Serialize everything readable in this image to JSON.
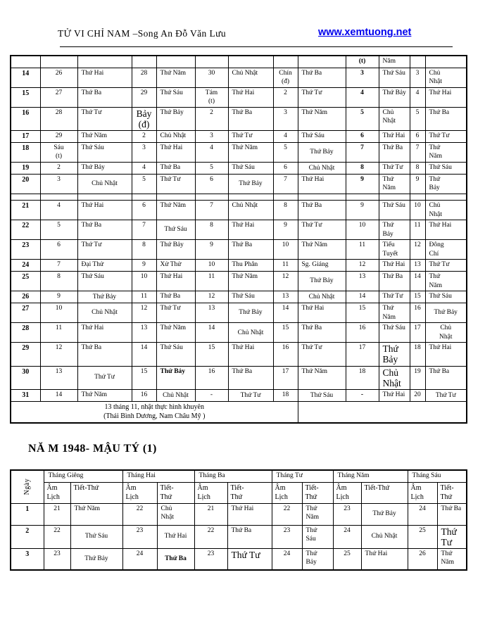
{
  "header": {
    "title": "TỬ VI CHỈ NAM –Song An Đỗ Văn Lưu",
    "link": "www.xemtuong.net",
    "link_color": "#0000ee"
  },
  "main_table": {
    "header_row": [
      "",
      "",
      "",
      "",
      "",
      "",
      "",
      "",
      "",
      {
        "t": "(t)",
        "b": true
      },
      "Năm",
      "",
      ""
    ],
    "rows": [
      {
        "cells": [
          {
            "t": "14",
            "b": true
          },
          "26",
          "Thứ Hai",
          "28",
          "Thứ Năm",
          "30",
          "Chủ Nhật",
          "Chín\n(đ)",
          "Thứ Ba",
          {
            "t": "3",
            "b": true
          },
          "Thứ Sáu",
          "3",
          "Chủ\nNhật"
        ]
      },
      {
        "cells": [
          {
            "t": "15",
            "b": true
          },
          "27",
          "Thứ Ba",
          "29",
          "Thứ Sáu",
          "Tám\n(t)",
          "Thứ Hai",
          "2",
          "Thứ Tư",
          {
            "t": "4",
            "b": true
          },
          "Thứ Bảy",
          "4",
          "Thứ Hai"
        ]
      },
      {
        "cells": [
          {
            "t": "16",
            "b": true
          },
          "28",
          "Thứ Tư",
          {
            "t": "Bảy\n(đ)",
            "lg": true
          },
          "Thứ Bảy",
          "2",
          "Thứ Ba",
          "3",
          "Thứ Năm",
          {
            "t": "5",
            "b": true
          },
          "Chủ\nNhật",
          "5",
          "Thứ Ba"
        ]
      },
      {
        "cells": [
          {
            "t": "17",
            "b": true
          },
          "29",
          "Thứ Năm",
          "2",
          "Chủ Nhật",
          "3",
          "Thứ Tư",
          "4",
          "Thứ Sáu",
          {
            "t": "6",
            "b": true
          },
          "Thứ Hai",
          "6",
          "Thứ Tư"
        ]
      },
      {
        "cells": [
          {
            "t": "18",
            "b": true
          },
          "Sáu\n(t)",
          "Thứ Sáu",
          "3",
          "Thứ Hai",
          "4",
          "Thứ Năm",
          "5",
          {
            "t": "Thứ Bảy",
            "c": true
          },
          {
            "t": "7",
            "b": true
          },
          "Thứ Ba",
          "7",
          "Thứ\nNăm"
        ]
      },
      {
        "cells": [
          {
            "t": "19",
            "b": true
          },
          "2",
          "Thứ Bảy",
          "4",
          "Thứ Ba",
          "5",
          "Thứ Sáu",
          "6",
          {
            "t": "Chủ Nhật",
            "c": true
          },
          {
            "t": "8",
            "b": true
          },
          "Thứ Tư",
          "8",
          "Thứ Sáu"
        ]
      },
      {
        "cells": [
          {
            "t": "20",
            "b": true
          },
          "3",
          {
            "t": "Chủ Nhật",
            "c": true
          },
          "5",
          "Thứ Tư",
          "6",
          {
            "t": "Thứ Bảy",
            "c": true
          },
          "7",
          "Thứ Hai",
          {
            "t": "9",
            "b": true
          },
          "Thứ\nNăm",
          "9",
          "Thứ\nBảy"
        ]
      },
      {
        "spacer": true
      },
      {
        "cells": [
          {
            "t": "21",
            "b": true
          },
          "4",
          "Thứ Hai",
          "6",
          "Thứ Năm",
          "7",
          "Chủ Nhật",
          "8",
          "Thứ Ba",
          "9",
          "Thứ Sáu",
          "10",
          "Chủ\nNhật"
        ]
      },
      {
        "cells": [
          {
            "t": "22",
            "b": true
          },
          "5",
          "Thứ Ba",
          "7",
          {
            "t": "Thứ Sáu",
            "c": true
          },
          "8",
          "Thứ Hai",
          "9",
          "Thứ Tư",
          "10",
          "Thứ\nBảy",
          "11",
          "Thứ Hai"
        ]
      },
      {
        "cells": [
          {
            "t": "23",
            "b": true
          },
          "6",
          "Thứ Tư",
          "8",
          "Thứ Bảy",
          "9",
          "Thứ Ba",
          "10",
          "Thứ Năm",
          "11",
          "Tiểu\nTuyết",
          "12",
          "Đông\nChí"
        ]
      },
      {
        "cells": [
          {
            "t": "24",
            "b": true
          },
          "7",
          "Đại Thử",
          "9",
          "Xử Thử",
          "10",
          "Thu Phân",
          "11",
          "Sg. Giáng",
          "12",
          "Thứ Hai",
          "13",
          "Thứ Tư"
        ]
      },
      {
        "cells": [
          {
            "t": "25",
            "b": true
          },
          "8",
          "Thứ Sáu",
          "10",
          "Thứ Hai",
          "11",
          "Thứ Năm",
          "12",
          {
            "t": "Thứ Bảy",
            "c": true
          },
          "13",
          "Thứ Ba",
          "14",
          "Thứ\nNăm"
        ]
      },
      {
        "cells": [
          {
            "t": "26",
            "b": true
          },
          "9",
          {
            "t": "Thứ Bảy",
            "c": true
          },
          "11",
          "Thứ Ba",
          "12",
          "Thứ Sáu",
          "13",
          {
            "t": "Chủ Nhật",
            "c": true
          },
          "14",
          "Thứ Tư",
          "15",
          "Thứ Sáu"
        ]
      },
      {
        "cells": [
          {
            "t": "27",
            "b": true
          },
          "10",
          {
            "t": "Chủ Nhật",
            "c": true
          },
          "12",
          "Thứ Tư",
          "13",
          {
            "t": "Thứ Bảy",
            "c": true
          },
          "14",
          "Thứ Hai",
          "15",
          "Thứ\nNăm",
          "16",
          {
            "t": "Thứ Bảy",
            "c": true
          }
        ]
      },
      {
        "cells": [
          {
            "t": "28",
            "b": true
          },
          "11",
          "Thứ Hai",
          "13",
          "Thứ Năm",
          "14",
          {
            "t": "Chủ Nhật",
            "c": true
          },
          "15",
          "Thứ Ba",
          "16",
          "Thứ Sáu",
          "17",
          {
            "t": "Chủ\nNhật",
            "c": true
          }
        ]
      },
      {
        "cells": [
          {
            "t": "29",
            "b": true
          },
          "12",
          "Thứ Ba",
          "14",
          "Thứ Sáu",
          "15",
          "Thứ Hai",
          "16",
          "Thứ Tư",
          "17",
          {
            "t": "Thứ\nBảy",
            "lg": true
          },
          "18",
          "Thứ Hai"
        ]
      },
      {
        "cells": [
          {
            "t": "30",
            "b": true
          },
          "13",
          {
            "t": "Thứ Tư",
            "c": true
          },
          "15",
          {
            "t": "Thứ Bảy",
            "b": true
          },
          "16",
          "Thứ Ba",
          "17",
          "Thứ Năm",
          "18",
          {
            "t": "Chủ\nNhật",
            "lg": true
          },
          "19",
          "Thứ Ba"
        ]
      },
      {
        "cells": [
          {
            "t": "31",
            "b": true
          },
          "14",
          "Thứ Năm",
          "16",
          {
            "t": "Chủ Nhật",
            "c": true
          },
          "-",
          {
            "t": "Thứ Tư",
            "c": true
          },
          "18",
          {
            "t": "Thứ Sáu",
            "c": true
          },
          {
            "t": "-",
            "b": true
          },
          "Thứ Hai",
          "20",
          {
            "t": "Thứ Tư",
            "c": true
          }
        ]
      }
    ],
    "note": {
      "line1": "13 tháng 11, nhật thực hình khuyên",
      "line2": "(Thái Bình  Dương, Nam Châu Mỹ )"
    }
  },
  "section_title": "NĂ M 1948- MẬU TÝ (1)",
  "month_table": {
    "day_label": "Ngày",
    "groups": [
      {
        "name": "Tháng Giêng",
        "sub": [
          "Âm\nLịch",
          "Tiết-Thứ"
        ]
      },
      {
        "name": "Tháng Hai",
        "sub": [
          "Âm\nLịch",
          "Tiết-\nThứ"
        ]
      },
      {
        "name": "Tháng  Ba",
        "sub": [
          "Âm\nLịch",
          "Tiết-\nThứ"
        ]
      },
      {
        "name": "Tháng Tư",
        "sub": [
          "Âm\nLịch",
          "Tiết-\nThứ"
        ]
      },
      {
        "name": "Tháng Năm",
        "sub": [
          "Âm\nLịch",
          "Tiết-Thứ"
        ]
      },
      {
        "name": "Tháng Sáu",
        "sub": [
          "Âm\nLịch",
          "Tiết-Thứ"
        ]
      }
    ],
    "rows": [
      {
        "cells": [
          {
            "t": "1",
            "b": true
          },
          "21",
          "Thứ Năm",
          "22",
          "Chủ\nNhật",
          "21",
          "Thứ Hai",
          "22",
          "Thứ\nNăm",
          "23",
          {
            "t": "Thứ Bảy",
            "c": true
          },
          "24",
          "Thứ Ba"
        ]
      },
      {
        "cells": [
          {
            "t": "2",
            "b": true
          },
          "22",
          {
            "t": "Thứ Sáu",
            "c": true
          },
          "23",
          {
            "t": "Thứ Hai",
            "c": true
          },
          "22",
          "Thứ Ba",
          "23",
          "Thứ\nSáu",
          "24",
          {
            "t": "Chủ Nhật",
            "c": true
          },
          "25",
          {
            "t": "Thứ Tư",
            "lg": true
          }
        ]
      },
      {
        "cells": [
          {
            "t": "3",
            "b": true
          },
          "23",
          {
            "t": "Thứ  Bảy",
            "c": true
          },
          "24",
          {
            "t": "Thứ  Ba",
            "b": true,
            "c": true
          },
          "23",
          {
            "t": "Thứ Tư",
            "lg": true
          },
          "24",
          "Thứ\nBảy",
          "25",
          "Thứ Hai",
          "26",
          "Thứ Năm"
        ]
      }
    ]
  }
}
